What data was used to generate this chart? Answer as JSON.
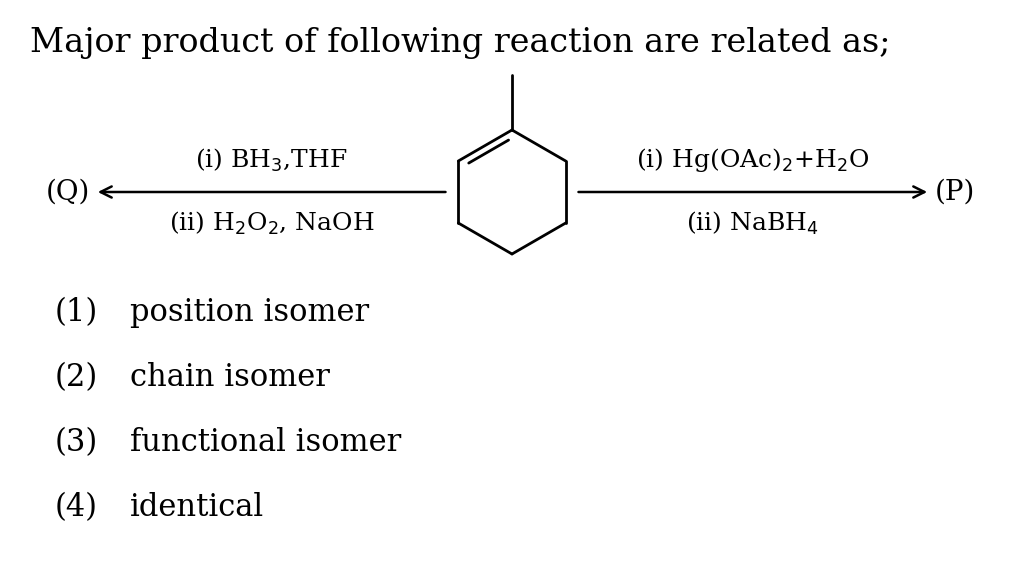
{
  "title": "Major product of following reaction are related as;",
  "title_fontsize": 24,
  "background_color": "#ffffff",
  "text_color": "#000000",
  "options": [
    [
      "(1)",
      "position isomer"
    ],
    [
      "(2)",
      "chain isomer"
    ],
    [
      "(3)",
      "functional isomer"
    ],
    [
      "(4)",
      "identical"
    ]
  ],
  "left_label": "(Q)",
  "right_label": "(P)",
  "arrow_left_label_above": "(i) BH$_3$,THF",
  "arrow_left_label_below": "(ii) H$_2$O$_2$, NaOH",
  "arrow_right_label_above": "(i) Hg(OAc)$_2$+H$_2$O",
  "arrow_right_label_below": "(ii) NaBH$_4$",
  "arrow_fontsize": 18,
  "label_fontsize": 20,
  "option_num_fontsize": 22,
  "option_text_fontsize": 22
}
